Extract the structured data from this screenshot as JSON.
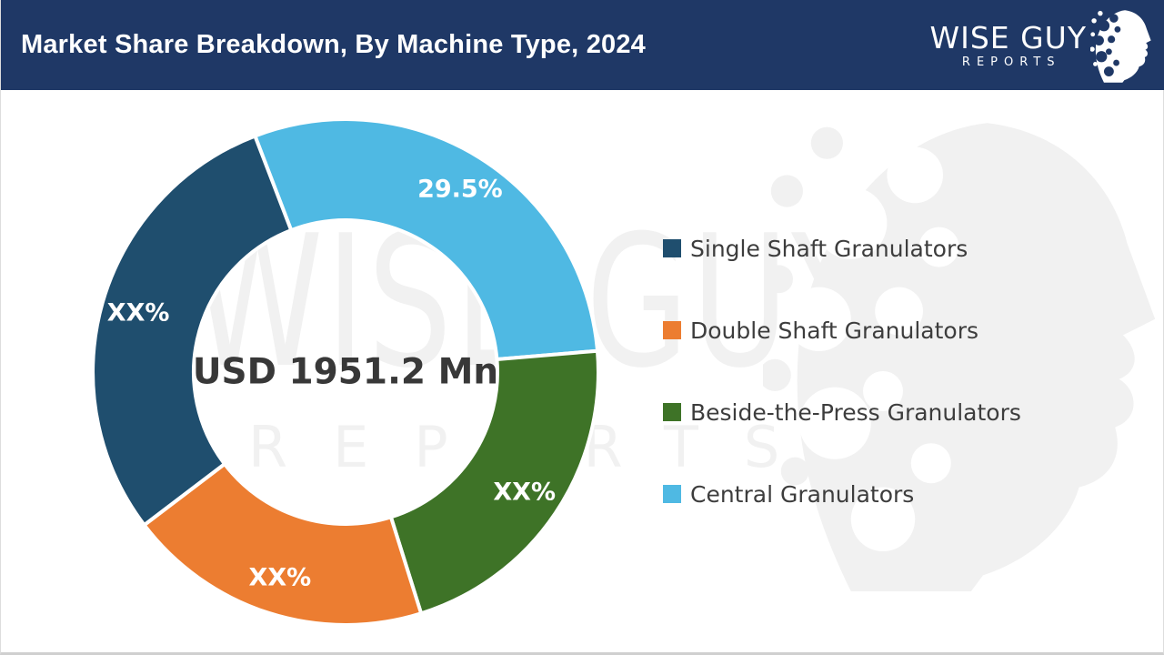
{
  "header": {
    "title": "Market Share Breakdown, By Machine Type, 2024",
    "logo": {
      "line1": "WISE GUY",
      "line2": "REPORTS"
    }
  },
  "watermark": {
    "line1": "WISE GUY",
    "line2": "REPORTS"
  },
  "chart_data": {
    "type": "donut",
    "title": "Market Share Breakdown, By Machine Type, 2024",
    "center_label": "USD 1951.2 Mn",
    "start_angle_deg": -21,
    "legend_position": "right",
    "slices": [
      {
        "name": "Central Granulators",
        "label": "29.5%",
        "value": 29.5,
        "color": "#4FB9E3"
      },
      {
        "name": "Beside-the-Press Granulators",
        "label": "XX%",
        "value": 21.5,
        "color": "#3E7327"
      },
      {
        "name": "Double Shaft Granulators",
        "label": "XX%",
        "value": 19.5,
        "color": "#EC7D31"
      },
      {
        "name": "Single Shaft Granulators",
        "label": "XX%",
        "value": 29.5,
        "color": "#1F4E6E"
      }
    ]
  },
  "legend": {
    "items": [
      {
        "label": "Single Shaft Granulators",
        "color": "#1F4E6E"
      },
      {
        "label": "Double Shaft Granulators",
        "color": "#EC7D31"
      },
      {
        "label": "Beside-the-Press Granulators",
        "color": "#3E7327"
      },
      {
        "label": "Central Granulators",
        "color": "#4FB9E3"
      }
    ]
  },
  "colors": {
    "header_bg": "#1F3866",
    "watermark": "#F1F1F1",
    "center_text": "#383838",
    "legend_text": "#3D3D3D"
  }
}
